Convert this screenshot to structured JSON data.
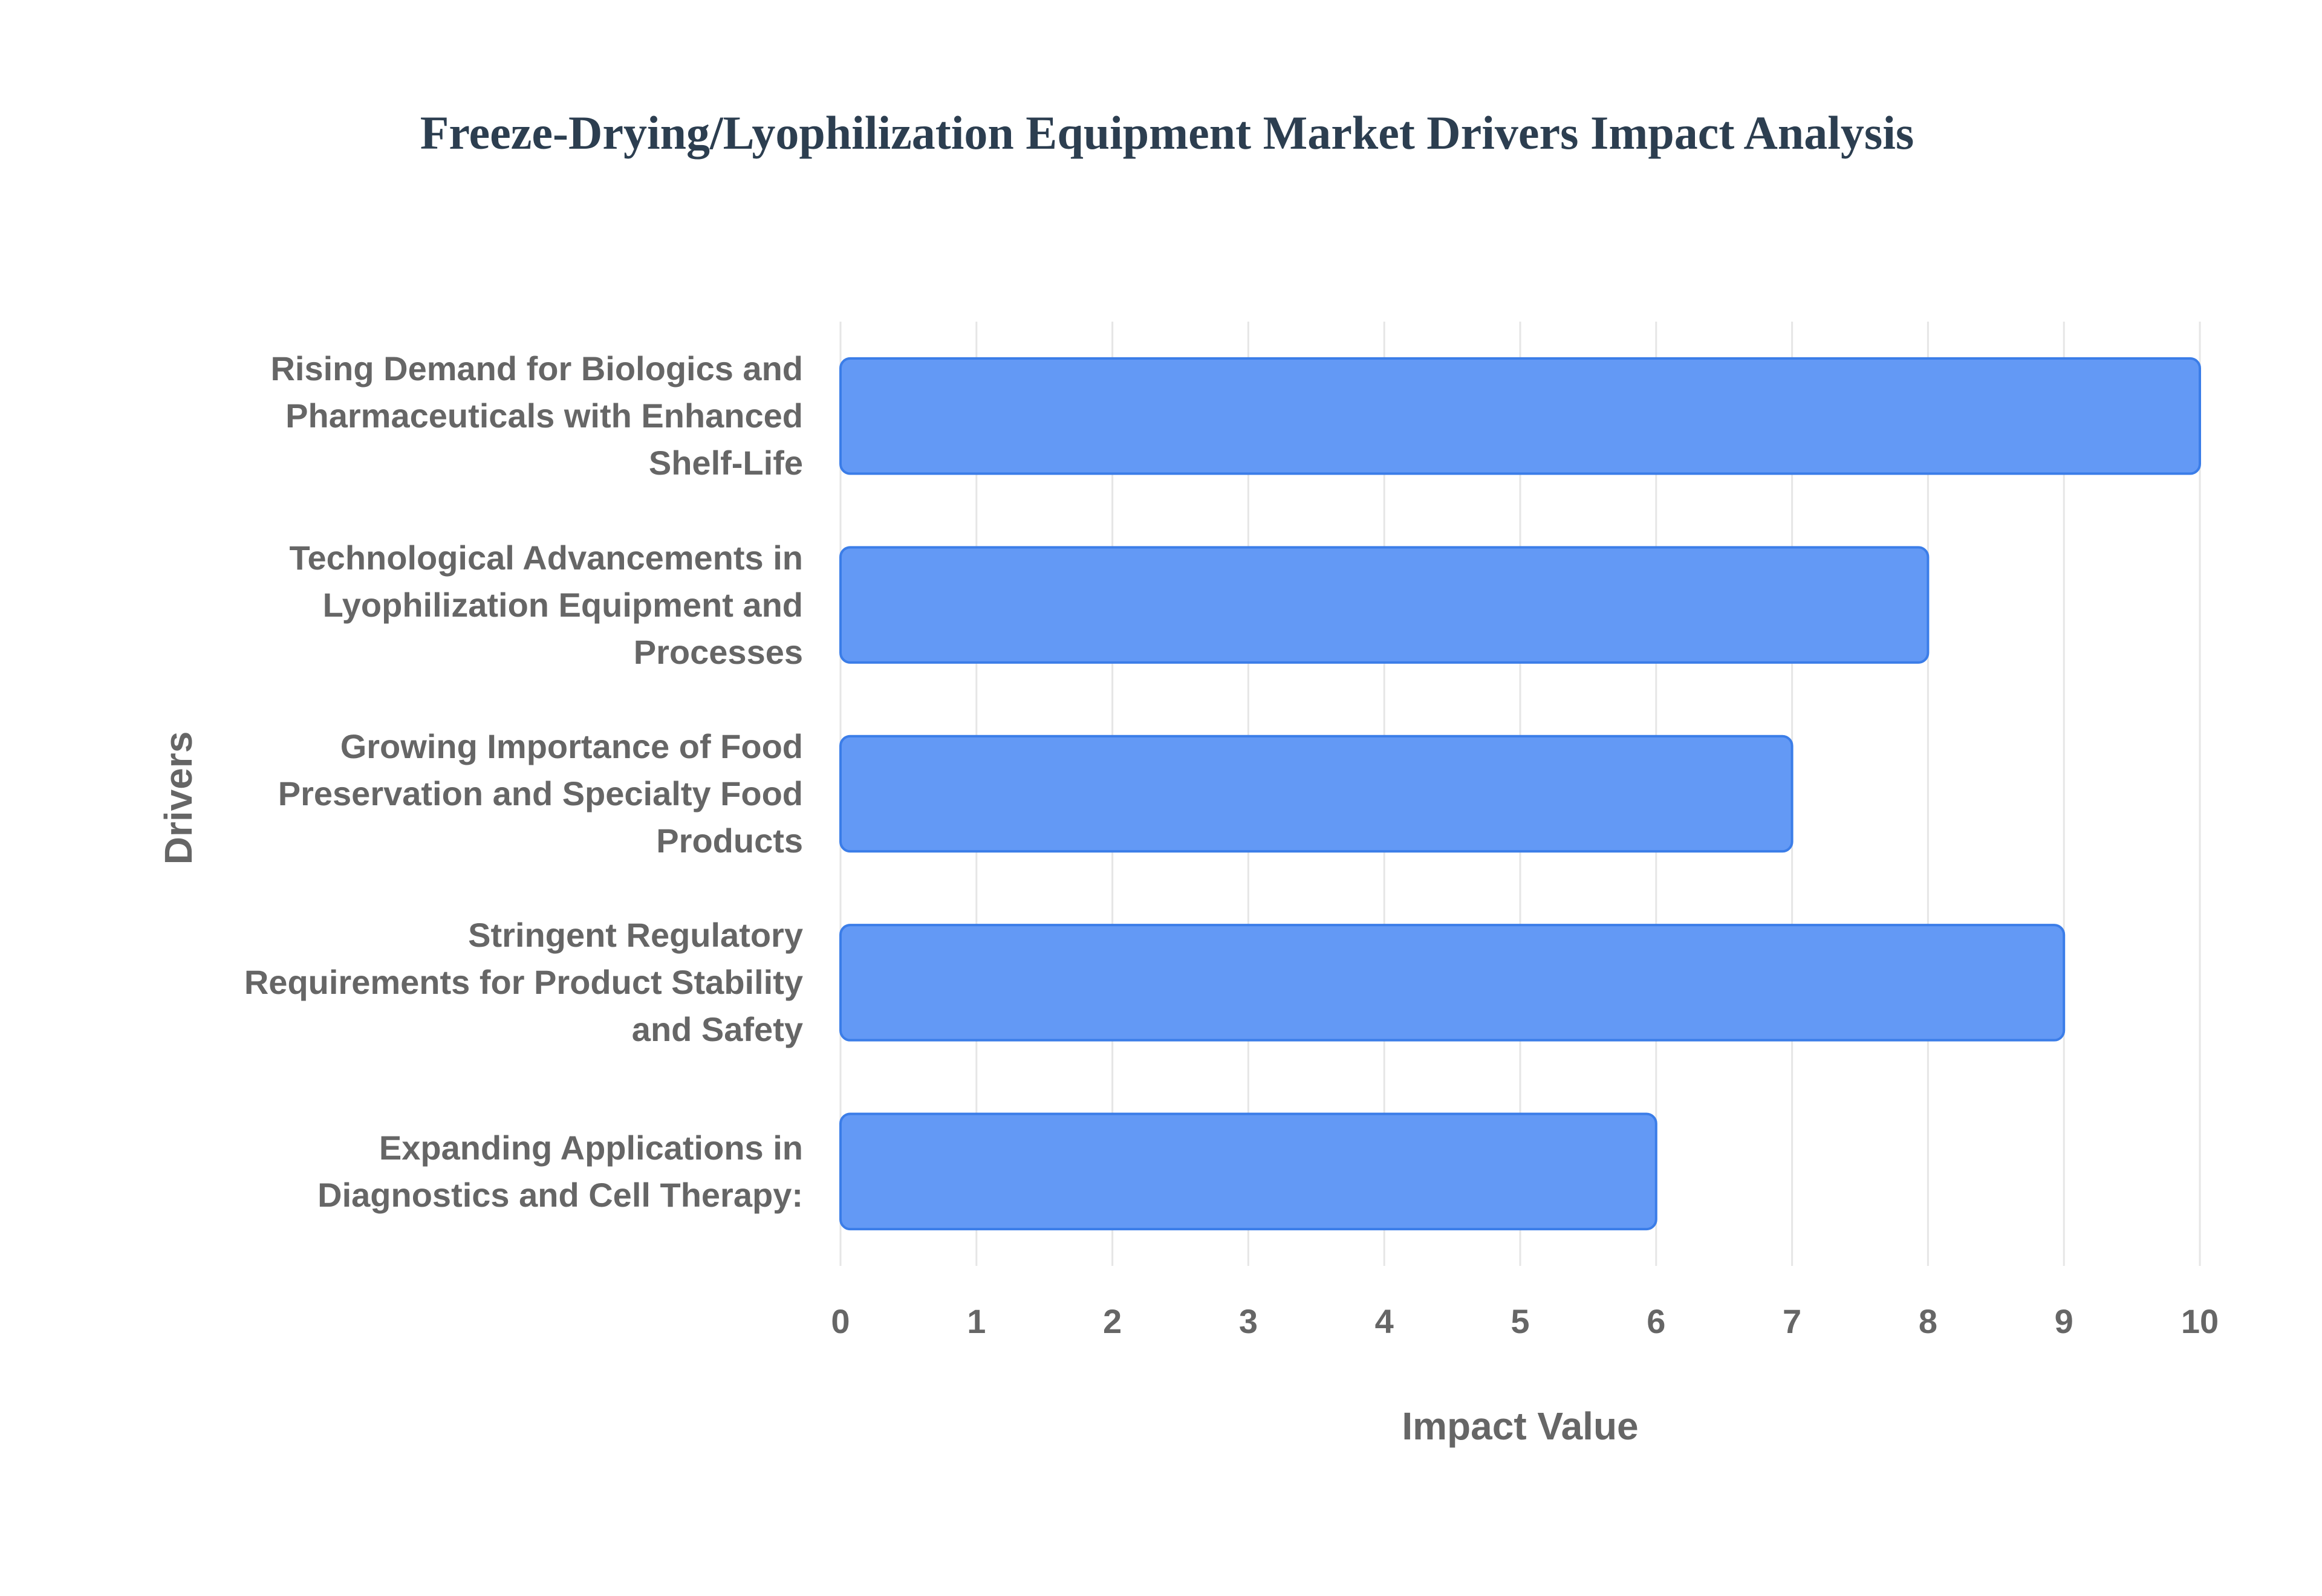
{
  "chart_data": {
    "type": "bar",
    "orientation": "horizontal",
    "title": "Freeze-Drying/Lyophilization Equipment Market Drivers Impact Analysis",
    "x_label": "Impact Value",
    "y_label": "Drivers",
    "categories": [
      "Rising Demand for Biologics and Pharmaceuticals with Enhanced Shelf-Life",
      "Technological Advancements in Lyophilization Equipment and Processes",
      "Growing Importance of Food Preservation and Specialty Food Products",
      "Stringent Regulatory Requirements for Product Stability and Safety",
      "Expanding Applications in Diagnostics and Cell Therapy:"
    ],
    "values": [
      10,
      8,
      7,
      9,
      6
    ],
    "color": "#6399f5",
    "xlim": [
      0,
      10
    ],
    "xticks": [
      0,
      1,
      2,
      3,
      4,
      5,
      6,
      7,
      8,
      9,
      10
    ],
    "grid": true
  }
}
